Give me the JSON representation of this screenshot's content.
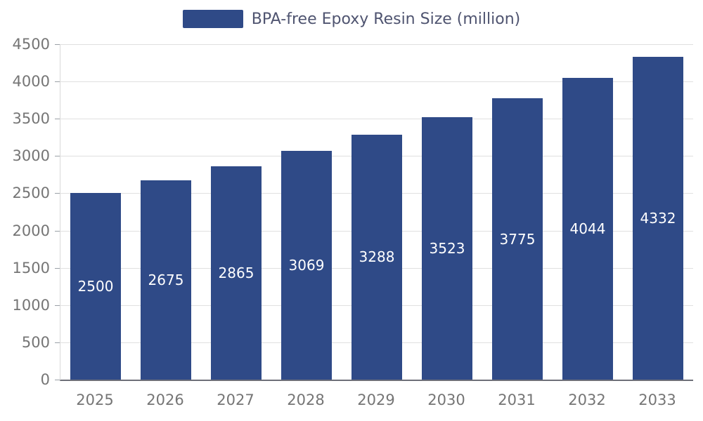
{
  "legend": {
    "label": "BPA-free Epoxy Resin Size (million)"
  },
  "colors": {
    "bar": "#2F4A87",
    "value_label": "#ffffff",
    "axis_text": "#757575",
    "gridline": "#E0E0E0"
  },
  "chart_data": {
    "type": "bar",
    "categories": [
      "2025",
      "2026",
      "2027",
      "2028",
      "2029",
      "2030",
      "2031",
      "2032",
      "2033"
    ],
    "values": [
      2500,
      2675,
      2865,
      3069,
      3288,
      3523,
      3775,
      4044,
      4332
    ],
    "title": "BPA-free Epoxy Resin Size (million)",
    "xlabel": "",
    "ylabel": "",
    "ylim": [
      0,
      4500
    ],
    "ytick_interval": 500,
    "grid": true,
    "legend_position": "top",
    "value_labels": "inside-center"
  }
}
